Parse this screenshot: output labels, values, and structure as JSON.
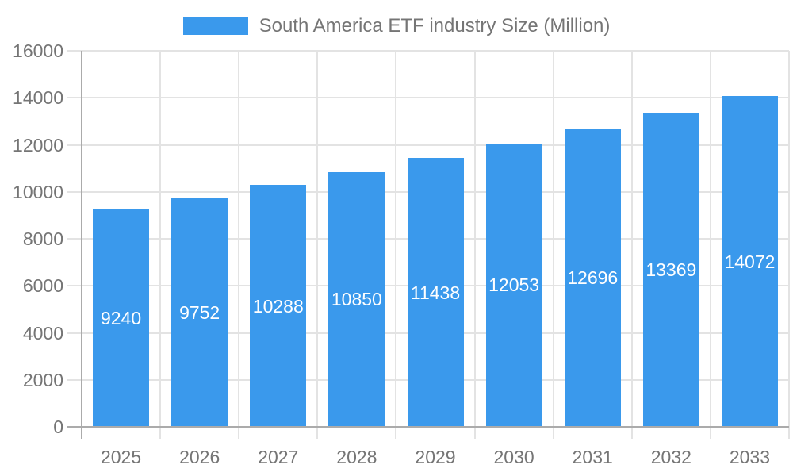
{
  "chart_data": {
    "type": "bar",
    "title": "South America ETF industry Size (Million)",
    "legend_position": "top",
    "categories": [
      "2025",
      "2026",
      "2027",
      "2028",
      "2029",
      "2030",
      "2031",
      "2032",
      "2033"
    ],
    "series": [
      {
        "name": "South America ETF industry Size (Million)",
        "values": [
          9240,
          9752,
          10288,
          10850,
          11438,
          12053,
          12696,
          13369,
          14072
        ]
      }
    ],
    "data_labels_visible": true,
    "xlabel": "",
    "ylabel": "",
    "ylim": [
      0,
      16000
    ],
    "y_ticks": [
      0,
      2000,
      4000,
      6000,
      8000,
      10000,
      12000,
      14000,
      16000
    ],
    "grid": true,
    "colors": {
      "bar": "#3A99EC",
      "grid": "#E3E3E3",
      "axis": "#ABABAB",
      "tick_label": "#757575",
      "legend_text": "#757575",
      "bar_label": "#FFFFFF",
      "background": "#FFFFFF"
    }
  }
}
